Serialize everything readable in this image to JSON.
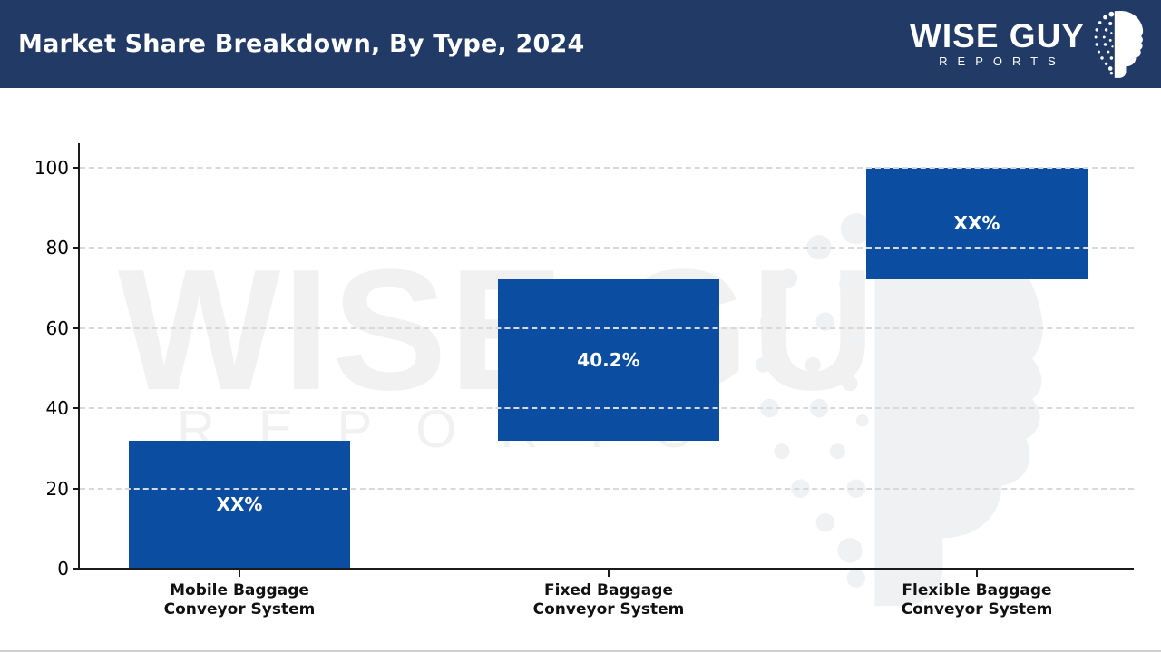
{
  "header": {
    "title": "Market Share Breakdown, By Type, 2024",
    "logo_line1": "WISE GUY",
    "logo_line2": "REPORTS",
    "bg_color": "#213a66"
  },
  "watermark": {
    "line1": "WISE GUY",
    "line2": "REPORTS"
  },
  "chart_data": {
    "type": "bar",
    "subtype": "waterfall-floating-bars",
    "title": "Market Share Breakdown, By Type, 2024",
    "categories": [
      "Mobile Baggage Conveyor System",
      "Fixed Baggage Conveyor System",
      "Flexible Baggage Conveyor System"
    ],
    "bars": [
      {
        "category_line1": "Mobile Baggage",
        "category_line2": "Conveyor System",
        "start": 0,
        "end": 32,
        "size": 32,
        "label": "XX%"
      },
      {
        "category_line1": "Fixed Baggage",
        "category_line2": "Conveyor System",
        "start": 32,
        "end": 72.2,
        "size": 40.2,
        "label": "40.2%"
      },
      {
        "category_line1": "Flexible Baggage",
        "category_line2": "Conveyor System",
        "start": 72.2,
        "end": 100,
        "size": 27.8,
        "label": "XX%"
      }
    ],
    "yticks": [
      0,
      20,
      40,
      60,
      80,
      100
    ],
    "ylim": [
      0,
      100
    ],
    "xlabel": "",
    "ylabel": "",
    "grid": "horizontal-dashed",
    "legend": "none",
    "bar_color": "#0b4da1",
    "bar_label_color": "#ffffff",
    "grid_color": "#d9d9d9",
    "axis_color": "#1a1a1a"
  }
}
